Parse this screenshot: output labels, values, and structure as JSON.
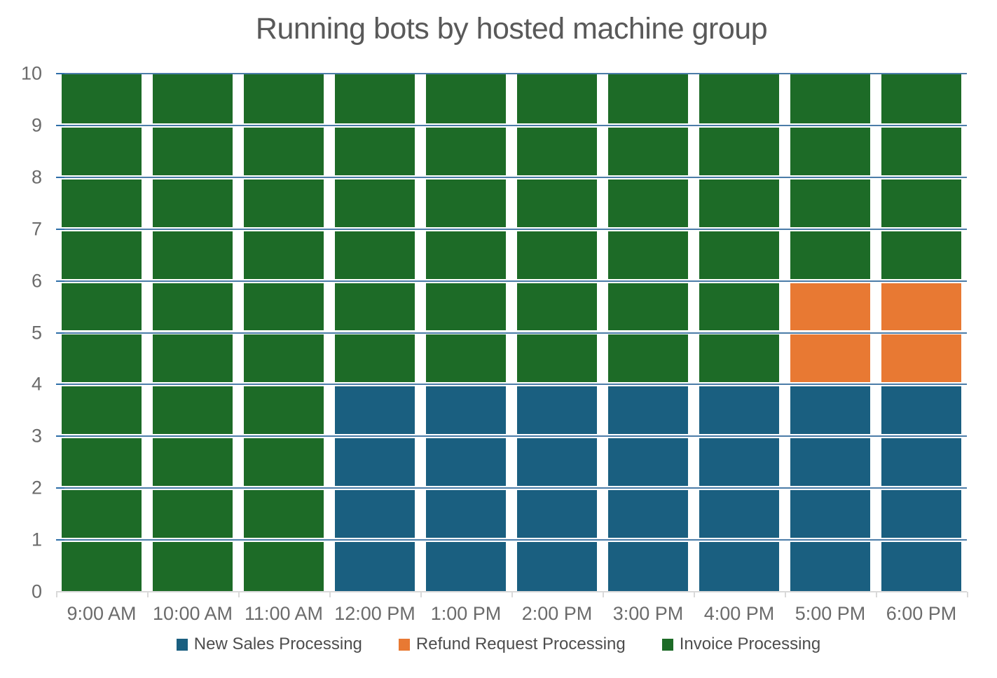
{
  "chart_data": {
    "type": "bar",
    "stacked": true,
    "title": "Running bots by hosted machine group",
    "categories": [
      "9:00 AM",
      "10:00 AM",
      "11:00 AM",
      "12:00 PM",
      "1:00 PM",
      "2:00 PM",
      "3:00 PM",
      "4:00 PM",
      "5:00 PM",
      "6:00 PM"
    ],
    "series": [
      {
        "name": "New Sales Processing",
        "color": "#1a5f80",
        "values": [
          0,
          0,
          0,
          4,
          4,
          4,
          4,
          4,
          4,
          4
        ]
      },
      {
        "name": "Refund Request Processing",
        "color": "#e87933",
        "values": [
          0,
          0,
          0,
          0,
          0,
          0,
          0,
          0,
          2,
          2
        ]
      },
      {
        "name": "Invoice Processing",
        "color": "#1d6b27",
        "values": [
          10,
          10,
          10,
          6,
          6,
          6,
          6,
          6,
          4,
          4
        ]
      }
    ],
    "ylim": [
      0,
      10
    ],
    "y_tick_step": 1,
    "y_ticks": [
      "0",
      "1",
      "2",
      "3",
      "4",
      "5",
      "6",
      "7",
      "8",
      "9",
      "10"
    ],
    "xlabel": "",
    "ylabel": "",
    "grid": true,
    "legend_position": "bottom"
  },
  "style": {
    "gridline_color": "#4b7ca8",
    "gridline_tick_color": "#2e6ea8",
    "axis_line_color": "#d9d9d9",
    "title_color": "#595959",
    "axis_text_color": "#6b6b6b",
    "legend_text_color": "#4d4d4d",
    "unit_separator_color": "#ffffff"
  }
}
